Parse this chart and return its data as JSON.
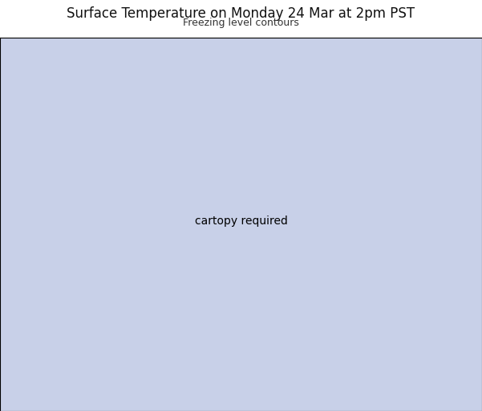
{
  "title": "Surface Temperature on Monday 24 Mar at 2pm PST",
  "subtitle": "Freezing level contours",
  "title_fontsize": 12,
  "subtitle_fontsize": 9,
  "background_color": "#ffffff",
  "map_ocean_color": "#c8d0e8",
  "fig_width": 6.01,
  "fig_height": 5.13,
  "dpi": 100,
  "lon_min": 99.0,
  "lon_max": 132.0,
  "lat_min": 0.5,
  "lat_max": 28.0,
  "contour_color": "#ff0000",
  "grid_color": "#b8bdd6",
  "grid_linewidth": 0.5,
  "land_base_color": "#c87030",
  "land_warm_color": "#cc2200"
}
